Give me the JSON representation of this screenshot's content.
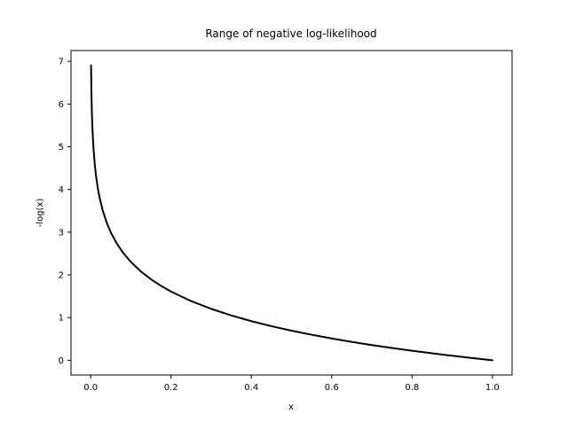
{
  "figure": {
    "background": "#ffffff",
    "frame_color": "#000000"
  },
  "chart_data": {
    "type": "line",
    "title": "Range of negative log-likelihood",
    "xlabel": "x",
    "ylabel": "-log(x)",
    "xlim": [
      -0.049,
      1.049
    ],
    "ylim": [
      -0.345,
      7.253
    ],
    "grid": false,
    "legend": "none",
    "xticks": [
      0.0,
      0.2,
      0.4,
      0.6,
      0.8,
      1.0
    ],
    "xtick_labels": [
      "0.0",
      "0.2",
      "0.4",
      "0.6",
      "0.8",
      "1.0"
    ],
    "yticks": [
      0,
      1,
      2,
      3,
      4,
      5,
      6,
      7
    ],
    "ytick_labels": [
      "0",
      "1",
      "2",
      "3",
      "4",
      "5",
      "6",
      "7"
    ],
    "series": [
      {
        "name": "-log(x)",
        "color": "#000000",
        "linewidth": 2,
        "x": [
          0.001,
          0.0015,
          0.002,
          0.003,
          0.004,
          0.005,
          0.007,
          0.01,
          0.013,
          0.017,
          0.022,
          0.03,
          0.04,
          0.05,
          0.065,
          0.08,
          0.1,
          0.125,
          0.15,
          0.175,
          0.2,
          0.25,
          0.3,
          0.35,
          0.4,
          0.45,
          0.5,
          0.55,
          0.6,
          0.65,
          0.7,
          0.75,
          0.8,
          0.85,
          0.9,
          0.95,
          1.0
        ],
        "y": [
          6.9078,
          6.5023,
          6.2146,
          5.8091,
          5.5215,
          5.2983,
          4.9618,
          4.6052,
          4.3428,
          4.0745,
          3.8167,
          3.5066,
          3.2189,
          2.9957,
          2.7334,
          2.5257,
          2.3026,
          2.0794,
          1.8971,
          1.743,
          1.6094,
          1.3863,
          1.204,
          1.0498,
          0.9163,
          0.7985,
          0.6931,
          0.5978,
          0.5108,
          0.4308,
          0.3567,
          0.2877,
          0.2231,
          0.1625,
          0.1054,
          0.0513,
          0.0
        ]
      }
    ]
  }
}
